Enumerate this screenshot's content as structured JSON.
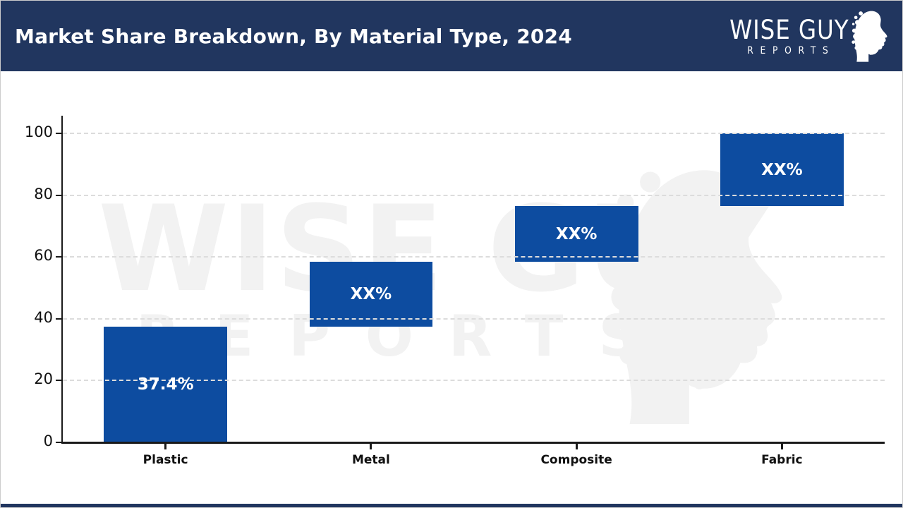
{
  "header": {
    "title": "Market Share Breakdown, By Material Type, 2024",
    "logo": {
      "primary": "WISE GUY",
      "secondary": "REPORTS"
    }
  },
  "watermark": {
    "line1": "WISE GUY",
    "line2": "REPORTS"
  },
  "colors": {
    "header_bg": "#21365F",
    "bar": "#0D4CA0",
    "grid": "#DCDCDC",
    "axis": "#1A1A1A",
    "tick_text": "#111111",
    "bar_label_text": "#FFFFFF",
    "watermark": "#F2F2F2"
  },
  "chart_data": {
    "type": "bar",
    "subtype": "waterfall",
    "title": "Market Share Breakdown, By Material Type, 2024",
    "categories": [
      "Plastic",
      "Metal",
      "Composite",
      "Fabric"
    ],
    "segments": [
      {
        "category": "Plastic",
        "start": 0,
        "end": 37.4,
        "label": "37.4%"
      },
      {
        "category": "Metal",
        "start": 37.4,
        "end": 58.4,
        "label": "XX%"
      },
      {
        "category": "Composite",
        "start": 58.4,
        "end": 76.4,
        "label": "XX%"
      },
      {
        "category": "Fabric",
        "start": 76.4,
        "end": 100,
        "label": "XX%"
      }
    ],
    "yticks": [
      0,
      20,
      40,
      60,
      80,
      100
    ],
    "ylim": [
      0,
      105
    ],
    "xlabel": "",
    "ylabel": "",
    "grid": "horizontal-dashed",
    "legend": "none"
  }
}
